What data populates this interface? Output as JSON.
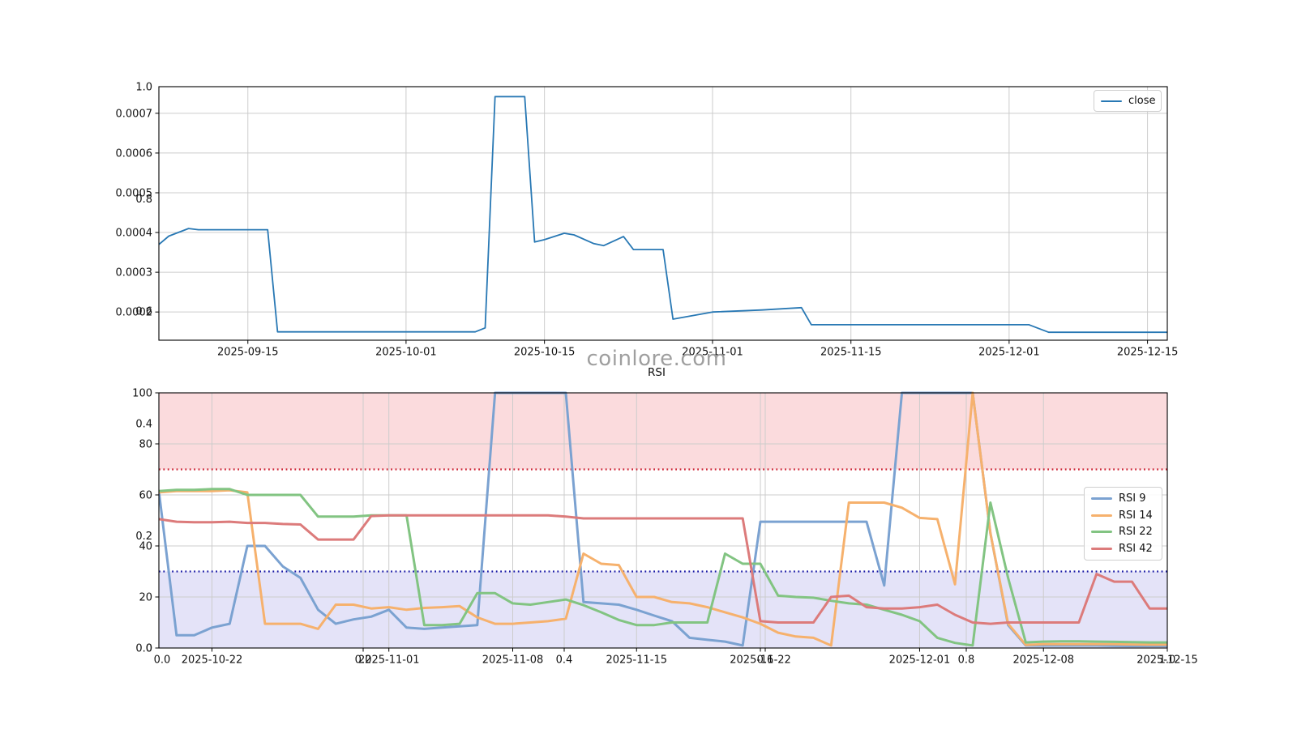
{
  "watermark": "coinlore.com",
  "chart_data": {
    "price": {
      "type": "line",
      "legend_label": "close",
      "color": "#2878b4",
      "x_domain": [
        "2025-09-06",
        "2025-12-17"
      ],
      "ylim": [
        0.000129,
        0.000767
      ],
      "x_ticks": [
        "2025-09-15",
        "2025-10-01",
        "2025-10-15",
        "2025-11-01",
        "2025-11-15",
        "2025-12-01",
        "2025-12-15"
      ],
      "y_ticks": [
        [
          "0.0007",
          0.0007
        ],
        [
          "0.0006",
          0.0006
        ],
        [
          "0.0005",
          0.0005
        ],
        [
          "0.0004",
          0.0004
        ],
        [
          "0.0003",
          0.0003
        ],
        [
          "0.0002",
          0.0002
        ]
      ],
      "points": [
        [
          "2025-09-06",
          0.00037
        ],
        [
          "2025-09-07",
          0.000391
        ],
        [
          "2025-09-09",
          0.00041
        ],
        [
          "2025-09-10",
          0.000407
        ],
        [
          "2025-09-17",
          0.000407
        ],
        [
          "2025-09-18",
          0.00015
        ],
        [
          "2025-10-08",
          0.00015
        ],
        [
          "2025-10-09",
          0.00016
        ],
        [
          "2025-10-10",
          0.000742
        ],
        [
          "2025-10-13",
          0.000742
        ],
        [
          "2025-10-14",
          0.000376
        ],
        [
          "2025-10-15",
          0.000382
        ],
        [
          "2025-10-17",
          0.000398
        ],
        [
          "2025-10-18",
          0.000394
        ],
        [
          "2025-10-20",
          0.000372
        ],
        [
          "2025-10-21",
          0.000367
        ],
        [
          "2025-10-23",
          0.00039
        ],
        [
          "2025-10-24",
          0.000357
        ],
        [
          "2025-10-27",
          0.000357
        ],
        [
          "2025-10-28",
          0.000182
        ],
        [
          "2025-11-01",
          0.0002
        ],
        [
          "2025-11-06",
          0.000205
        ],
        [
          "2025-11-10",
          0.000211
        ],
        [
          "2025-11-11",
          0.000168
        ],
        [
          "2025-12-03",
          0.000168
        ],
        [
          "2025-12-05",
          0.000149
        ],
        [
          "2025-12-17",
          0.000149
        ]
      ]
    },
    "rsi": {
      "type": "line",
      "title": "RSI",
      "x_domain": [
        "2025-10-19",
        "2025-12-15"
      ],
      "ylim": [
        0,
        100
      ],
      "overbought_level": 70,
      "oversold_level": 30,
      "overbought_fill": "#fbdbdd",
      "oversold_fill": "#e4e3f8",
      "overbought_line_color": "#cc2233",
      "oversold_line_color": "#1a1aa6",
      "x_ticks": [
        "2025-10-22",
        "2025-11-01",
        "2025-11-08",
        "2025-11-15",
        "2025-11-22",
        "2025-12-01",
        "2025-12-08",
        "2025-12-15"
      ],
      "y_ticks": [
        [
          "100",
          100
        ],
        [
          "80",
          80
        ],
        [
          "60",
          60
        ],
        [
          "40",
          40
        ],
        [
          "20",
          20
        ],
        [
          "0",
          0
        ]
      ],
      "dates": [
        "2025-10-19",
        "2025-10-20",
        "2025-10-21",
        "2025-10-22",
        "2025-10-23",
        "2025-10-24",
        "2025-10-25",
        "2025-10-26",
        "2025-10-27",
        "2025-10-28",
        "2025-10-29",
        "2025-10-30",
        "2025-10-31",
        "2025-11-01",
        "2025-11-02",
        "2025-11-03",
        "2025-11-04",
        "2025-11-05",
        "2025-11-06",
        "2025-11-07",
        "2025-11-08",
        "2025-11-09",
        "2025-11-10",
        "2025-11-11",
        "2025-11-12",
        "2025-11-13",
        "2025-11-14",
        "2025-11-15",
        "2025-11-16",
        "2025-11-17",
        "2025-11-18",
        "2025-11-19",
        "2025-11-20",
        "2025-11-21",
        "2025-11-22",
        "2025-11-23",
        "2025-11-24",
        "2025-11-25",
        "2025-11-26",
        "2025-11-27",
        "2025-11-28",
        "2025-11-29",
        "2025-11-30",
        "2025-12-01",
        "2025-12-02",
        "2025-12-03",
        "2025-12-04",
        "2025-12-05",
        "2025-12-06",
        "2025-12-07",
        "2025-12-08",
        "2025-12-09",
        "2025-12-10",
        "2025-12-11",
        "2025-12-12",
        "2025-12-13",
        "2025-12-14",
        "2025-12-15"
      ],
      "series": [
        {
          "name": "RSI 9",
          "color": "#7ba2d1",
          "values": [
            61.5,
            5,
            5,
            8,
            9.5,
            40,
            40,
            32,
            27.5,
            15,
            9.5,
            11.2,
            12.3,
            15,
            8,
            7.5,
            8,
            8.5,
            9,
            100,
            100,
            100,
            100,
            100,
            18,
            17.5,
            17,
            15,
            12.7,
            10.5,
            4,
            3.2,
            2.5,
            1,
            49.5,
            49.5,
            49.5,
            49.5,
            49.5,
            49.5,
            49.5,
            24.5,
            100,
            100,
            100,
            100,
            100,
            45,
            9,
            1,
            1,
            1,
            1,
            1,
            0.9,
            0.8,
            0.8,
            0.8
          ]
        },
        {
          "name": "RSI 14",
          "color": "#f6b16d",
          "values": [
            61,
            61.5,
            61.5,
            61.5,
            61.8,
            61,
            9.5,
            9.5,
            9.5,
            7.5,
            17,
            17,
            15.5,
            16,
            15,
            15.7,
            16,
            16.4,
            12,
            9.5,
            9.5,
            10,
            10.5,
            11.5,
            37,
            33,
            32.5,
            20,
            20,
            18,
            17.5,
            16,
            14,
            12,
            9.5,
            6,
            4.5,
            4,
            1,
            57,
            57,
            57,
            55,
            51,
            50.5,
            25,
            100,
            45,
            9.5,
            1.2,
            1.5,
            1.5,
            1.5,
            1.5,
            1.5,
            1.4,
            1.3,
            1.3
          ]
        },
        {
          "name": "RSI 22",
          "color": "#82c482",
          "values": [
            61.5,
            62,
            62,
            62.3,
            62.3,
            60,
            60,
            60,
            60,
            51.5,
            51.5,
            51.5,
            52,
            52,
            52,
            9,
            9,
            9.5,
            21.5,
            21.5,
            17.5,
            17,
            18,
            19,
            16.8,
            14,
            11,
            9,
            9,
            10,
            10,
            10,
            37,
            33,
            33,
            20.5,
            20,
            19.7,
            18.5,
            17.5,
            17,
            15,
            13,
            10.5,
            4,
            2,
            1,
            57,
            27.5,
            2.2,
            2.5,
            2.6,
            2.6,
            2.5,
            2.4,
            2.3,
            2.2,
            2.2
          ]
        },
        {
          "name": "RSI 42",
          "color": "#dc7b7b",
          "values": [
            50.5,
            49.5,
            49.3,
            49.3,
            49.5,
            49,
            49,
            48.6,
            48.4,
            42.5,
            42.5,
            42.5,
            51.7,
            52,
            52,
            52,
            52,
            52,
            52,
            52,
            52,
            52,
            52,
            51.5,
            50.8,
            50.8,
            50.8,
            50.8,
            50.8,
            50.8,
            50.8,
            50.8,
            50.8,
            50.8,
            10.5,
            10,
            10,
            10,
            20,
            20.5,
            16,
            15.5,
            15.5,
            16,
            17,
            13,
            10,
            9.5,
            10,
            10,
            10,
            10,
            10,
            29,
            26,
            26,
            15.5,
            15.5
          ]
        }
      ]
    },
    "overlay_axis": {
      "y_tick_labels": [
        "1.0",
        "0.8",
        "0.6",
        "0.4",
        "0.2",
        "0.0"
      ],
      "x_tick_labels": [
        "0.0",
        "0.2",
        "0.4",
        "0.6",
        "0.8",
        "1.0"
      ]
    }
  }
}
